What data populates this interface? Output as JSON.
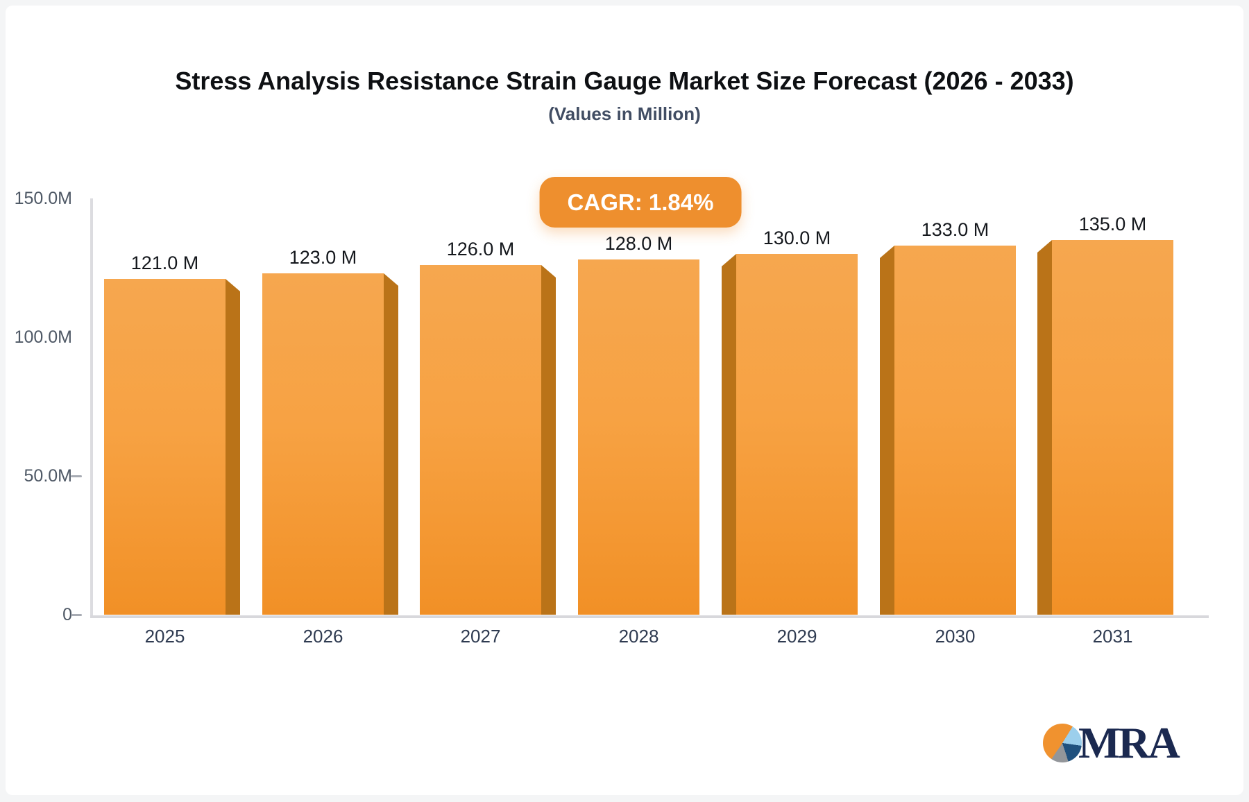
{
  "page": {
    "background": "#f4f5f6",
    "card_background": "#ffffff"
  },
  "header": {
    "title": "Stress Analysis Resistance Strain Gauge Market Size Forecast (2026 - 2033)",
    "subtitle": "(Values in Million)"
  },
  "cagr_badge": {
    "label": "CAGR: 1.84%",
    "background": "#ee8f2e",
    "text_color": "#ffffff"
  },
  "chart_data": {
    "type": "bar",
    "title": "Stress Analysis Resistance Strain Gauge Market Size Forecast (2026 - 2033)",
    "subtitle": "(Values in Million)",
    "unit": "Million",
    "categories": [
      "2025",
      "2026",
      "2027",
      "2028",
      "2029",
      "2030",
      "2031"
    ],
    "values": [
      121,
      123,
      126,
      128,
      130,
      133,
      135
    ],
    "value_labels": [
      "121.0 M",
      "123.0 M",
      "126.0 M",
      "128.0 M",
      "130.0 M",
      "133.0 M",
      "135.0 M"
    ],
    "y_ticks": [
      "150.0M",
      "100.0M",
      "50.0M",
      "0"
    ],
    "y_tick_values": [
      150,
      100,
      50,
      0
    ],
    "ylim": [
      0,
      150
    ],
    "xlabel": "",
    "ylabel": "",
    "grid": false,
    "legend": false,
    "annotations": [
      "CAGR: 1.84%"
    ],
    "bar_color_top": "#f6a74f",
    "bar_color_bottom": "#f19026",
    "bar_side_color": "#ba7318",
    "axis_color": "#dcdce0",
    "label_color": "#14171c",
    "tick_label_color": "#4e5865"
  },
  "logo": {
    "text": "MRA",
    "pie_colors": [
      "#f0922f",
      "#9ccfec",
      "#20517e",
      "#93969a"
    ],
    "text_color": "#1b2950"
  }
}
